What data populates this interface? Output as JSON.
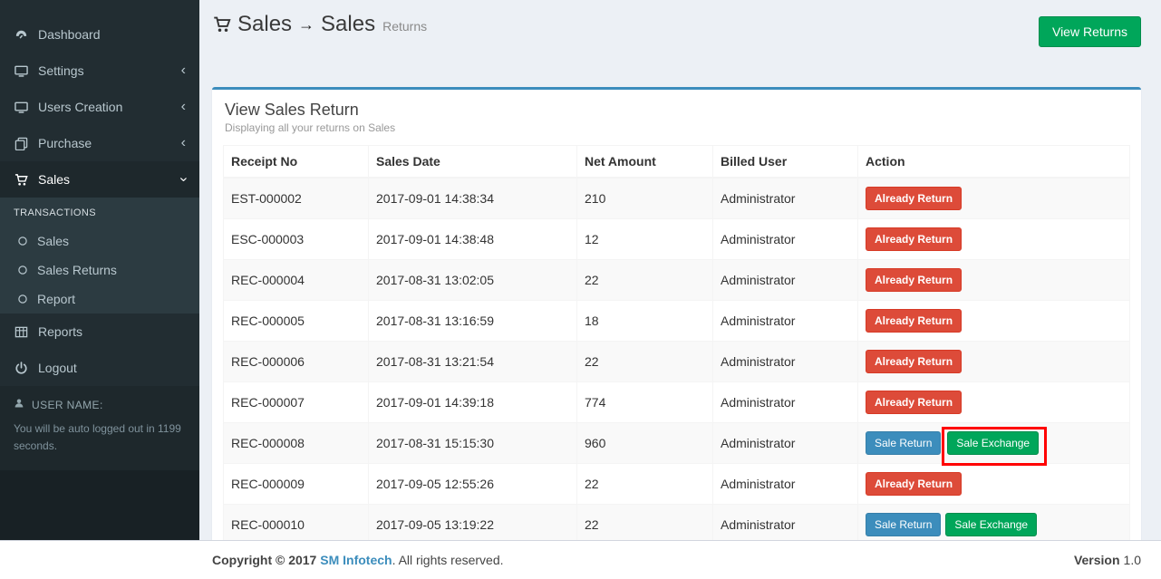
{
  "sidebar": {
    "menu": [
      {
        "label": "Dashboard"
      },
      {
        "label": "Settings"
      },
      {
        "label": "Users Creation"
      },
      {
        "label": "Purchase"
      },
      {
        "label": "Sales"
      }
    ],
    "section_header": "TRANSACTIONS",
    "submenu": [
      {
        "label": "Sales"
      },
      {
        "label": "Sales Returns"
      },
      {
        "label": "Report"
      }
    ],
    "menu_bottom": [
      {
        "label": "Reports"
      },
      {
        "label": "Logout"
      }
    ],
    "user_label": "USER NAME:",
    "logout_notice": "You will be auto logged out in 1199 seconds."
  },
  "header": {
    "title_primary": "Sales",
    "arrow": "→",
    "title_secondary": "Sales",
    "title_suffix": "Returns",
    "view_returns": "View Returns"
  },
  "panel": {
    "title": "View Sales Return",
    "subtitle": "Displaying all your returns on Sales"
  },
  "action_labels": {
    "already": "Already Return",
    "sale_return": "Sale Return",
    "sale_exchange": "Sale Exchange"
  },
  "table": {
    "columns": [
      "Receipt No",
      "Sales Date",
      "Net Amount",
      "Billed User",
      "Action"
    ],
    "rows": [
      {
        "receipt_no": "EST-000002",
        "sales_date": "2017-09-01 14:38:34",
        "net_amount": "210",
        "billed_user": "Administrator",
        "actions": [
          "already"
        ],
        "highlighted_action": null
      },
      {
        "receipt_no": "ESC-000003",
        "sales_date": "2017-09-01 14:38:48",
        "net_amount": "12",
        "billed_user": "Administrator",
        "actions": [
          "already"
        ],
        "highlighted_action": null
      },
      {
        "receipt_no": "REC-000004",
        "sales_date": "2017-08-31 13:02:05",
        "net_amount": "22",
        "billed_user": "Administrator",
        "actions": [
          "already"
        ],
        "highlighted_action": null
      },
      {
        "receipt_no": "REC-000005",
        "sales_date": "2017-08-31 13:16:59",
        "net_amount": "18",
        "billed_user": "Administrator",
        "actions": [
          "already"
        ],
        "highlighted_action": null
      },
      {
        "receipt_no": "REC-000006",
        "sales_date": "2017-08-31 13:21:54",
        "net_amount": "22",
        "billed_user": "Administrator",
        "actions": [
          "already"
        ],
        "highlighted_action": null
      },
      {
        "receipt_no": "REC-000007",
        "sales_date": "2017-09-01 14:39:18",
        "net_amount": "774",
        "billed_user": "Administrator",
        "actions": [
          "already"
        ],
        "highlighted_action": null
      },
      {
        "receipt_no": "REC-000008",
        "sales_date": "2017-08-31 15:15:30",
        "net_amount": "960",
        "billed_user": "Administrator",
        "actions": [
          "sale_return",
          "sale_exchange"
        ],
        "highlighted_action": "sale_exchange"
      },
      {
        "receipt_no": "REC-000009",
        "sales_date": "2017-09-05 12:55:26",
        "net_amount": "22",
        "billed_user": "Administrator",
        "actions": [
          "already"
        ],
        "highlighted_action": null
      },
      {
        "receipt_no": "REC-000010",
        "sales_date": "2017-09-05 13:19:22",
        "net_amount": "22",
        "billed_user": "Administrator",
        "actions": [
          "sale_return",
          "sale_exchange"
        ],
        "highlighted_action": null
      }
    ]
  },
  "footer": {
    "copyright_bold": "Copyright © 2017",
    "company": "SM Infotech",
    "rights": ". All rights reserved.",
    "version_label": "Version",
    "version_value": "1.0"
  },
  "colors": {
    "top_strip": "#00a9d4",
    "panel_accent": "#3c8dbc",
    "button_green": "#00a65a",
    "button_blue": "#3c8dbc",
    "button_red": "#dd4b39",
    "highlight_border": "#ff0000",
    "sidebar_bg": "#222d32"
  }
}
